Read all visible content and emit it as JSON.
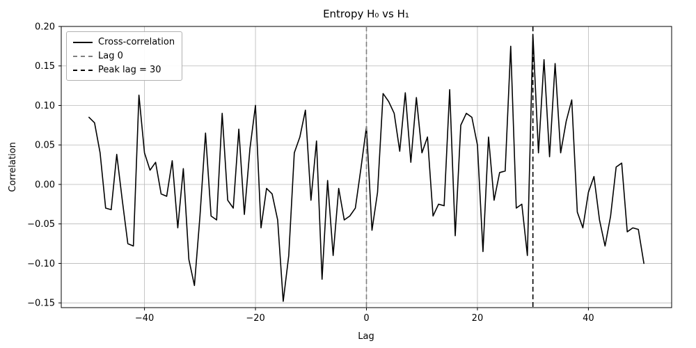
{
  "chart_data": {
    "type": "line",
    "title": "Entropy H₀ vs H₁",
    "xlabel": "Lag",
    "ylabel": "Correlation",
    "grid": true,
    "legend_position": "upper left",
    "xlim": [
      -55,
      55
    ],
    "ylim": [
      -0.156,
      0.2
    ],
    "xticks": [
      -40,
      -20,
      0,
      20,
      40
    ],
    "yticks": [
      -0.15,
      -0.1,
      -0.05,
      0.0,
      0.05,
      0.1,
      0.15,
      0.2
    ],
    "line_color": "#000000",
    "grid_color": "#b8b8b8",
    "x": [
      -50,
      -49,
      -48,
      -47,
      -46,
      -45,
      -44,
      -43,
      -42,
      -41,
      -40,
      -39,
      -38,
      -37,
      -36,
      -35,
      -34,
      -33,
      -32,
      -31,
      -30,
      -29,
      -28,
      -27,
      -26,
      -25,
      -24,
      -23,
      -22,
      -21,
      -20,
      -19,
      -18,
      -17,
      -16,
      -15,
      -14,
      -13,
      -12,
      -11,
      -10,
      -9,
      -8,
      -7,
      -6,
      -5,
      -4,
      -3,
      -2,
      -1,
      0,
      1,
      2,
      3,
      4,
      5,
      6,
      7,
      8,
      9,
      10,
      11,
      12,
      13,
      14,
      15,
      16,
      17,
      18,
      19,
      20,
      21,
      22,
      23,
      24,
      25,
      26,
      27,
      28,
      29,
      30,
      31,
      32,
      33,
      34,
      35,
      36,
      37,
      38,
      39,
      40,
      41,
      42,
      43,
      44,
      45,
      46,
      47,
      48,
      49,
      50
    ],
    "series": [
      {
        "name": "Cross-correlation",
        "values": [
          0.085,
          0.078,
          0.04,
          -0.03,
          -0.032,
          0.038,
          -0.02,
          -0.075,
          -0.078,
          0.113,
          0.04,
          0.018,
          0.028,
          -0.012,
          -0.015,
          0.03,
          -0.055,
          0.02,
          -0.095,
          -0.128,
          -0.04,
          0.065,
          -0.04,
          -0.045,
          0.09,
          -0.02,
          -0.03,
          0.07,
          -0.038,
          0.045,
          0.1,
          -0.055,
          -0.005,
          -0.012,
          -0.045,
          -0.148,
          -0.09,
          0.04,
          0.06,
          0.094,
          -0.02,
          0.055,
          -0.12,
          0.005,
          -0.09,
          -0.005,
          -0.045,
          -0.04,
          -0.03,
          0.02,
          0.073,
          -0.058,
          -0.01,
          0.115,
          0.105,
          0.09,
          0.042,
          0.116,
          0.028,
          0.11,
          0.04,
          0.06,
          -0.04,
          -0.025,
          -0.027,
          0.12,
          -0.065,
          0.075,
          0.09,
          0.085,
          0.05,
          -0.085,
          0.06,
          -0.02,
          0.015,
          0.017,
          0.175,
          -0.03,
          -0.025,
          -0.09,
          0.19,
          0.04,
          0.158,
          0.035,
          0.153,
          0.04,
          0.08,
          0.107,
          -0.035,
          -0.055,
          -0.01,
          0.01,
          -0.045,
          -0.078,
          -0.04,
          0.022,
          0.027,
          -0.06,
          -0.055,
          -0.057,
          -0.1
        ]
      }
    ],
    "vlines": [
      {
        "label": "Lag 0",
        "x": 0,
        "color": "#7f7f7f"
      },
      {
        "label": "Peak lag = 30",
        "x": 30,
        "color": "#000000"
      }
    ]
  }
}
